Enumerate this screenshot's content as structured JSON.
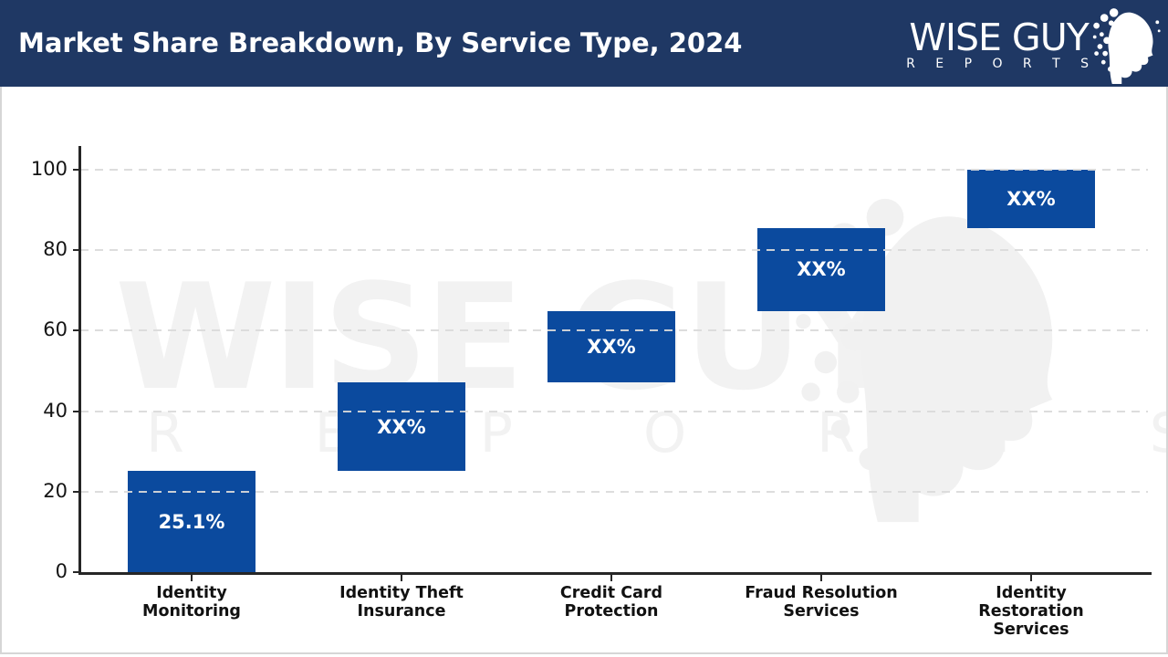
{
  "header": {
    "title": "Market Share Breakdown, By Service Type, 2024"
  },
  "brand": {
    "name_top": "WISE GUY",
    "name_bottom": "R E P O R T S",
    "head_icon": "dotted-profile-head-icon"
  },
  "watermark": {
    "text_top": "WISE GUY",
    "text_bottom": "R E P O R T S"
  },
  "colors": {
    "header_bg": "#1f3864",
    "bar": "#0b4a9e",
    "grid": "#d9d9d9",
    "axis": "#262626",
    "bar_label_text": "#ffffff",
    "watermark": "#f2f2f2"
  },
  "chart_data": {
    "type": "bar",
    "subtype": "waterfall",
    "title": "Market Share Breakdown, By Service Type, 2024",
    "xlabel": "",
    "ylabel": "",
    "ylim": [
      0,
      105
    ],
    "yticks": [
      0,
      20,
      40,
      60,
      80,
      100
    ],
    "grid": "horizontal-dashed",
    "legend": "none",
    "categories": [
      "Identity\nMonitoring",
      "Identity Theft\nInsurance",
      "Credit Card\nProtection",
      "Fraud Resolution\nServices",
      "Identity\nRestoration\nServices"
    ],
    "segments": [
      {
        "start": 0,
        "end": 25.1,
        "label": "25.1%"
      },
      {
        "start": 25.1,
        "end": 47.2,
        "label": "XX%"
      },
      {
        "start": 47.2,
        "end": 64.9,
        "label": "XX%"
      },
      {
        "start": 64.9,
        "end": 85.5,
        "label": "XX%"
      },
      {
        "start": 85.5,
        "end": 100,
        "label": "XX%"
      }
    ]
  }
}
